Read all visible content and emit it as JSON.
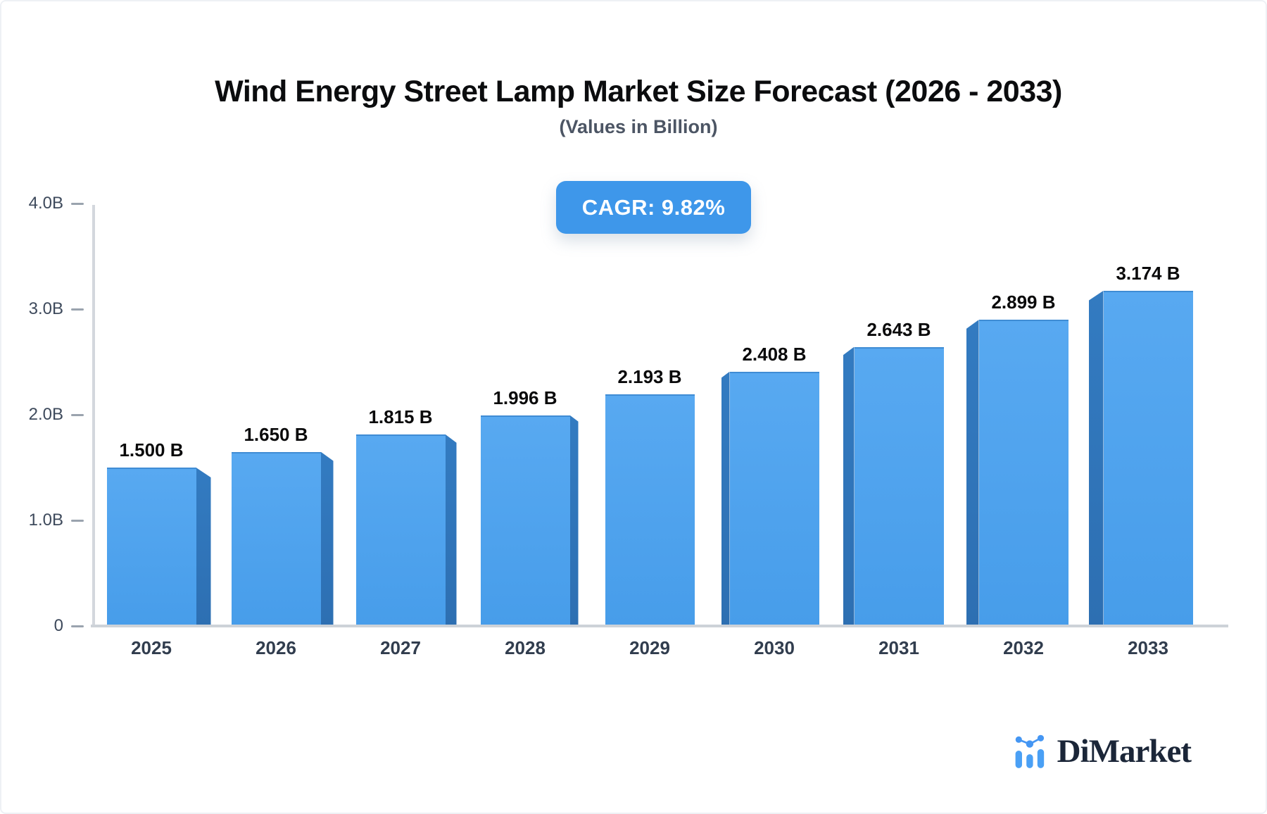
{
  "header": {
    "title": "Wind Energy Street Lamp Market Size Forecast (2026 - 2033)",
    "subtitle": "(Values in Billion)"
  },
  "badge": {
    "label": "CAGR: 9.82%",
    "bg_color": "#3e97ea",
    "text_color": "#ffffff"
  },
  "chart_data": {
    "type": "bar",
    "title": "Wind Energy Street Lamp Market Size Forecast (2026 - 2033)",
    "subtitle": "(Values in Billion)",
    "unit": "Billion",
    "categories": [
      "2025",
      "2026",
      "2027",
      "2028",
      "2029",
      "2030",
      "2031",
      "2032",
      "2033"
    ],
    "values": [
      1.5,
      1.65,
      1.815,
      1.996,
      2.193,
      2.408,
      2.643,
      2.899,
      3.174
    ],
    "value_labels": [
      "1.500 B",
      "1.650 B",
      "1.815 B",
      "1.996 B",
      "2.193 B",
      "2.408 B",
      "2.643 B",
      "2.899 B",
      "3.174 B"
    ],
    "ylim": [
      0,
      4.0
    ],
    "yticks": [
      {
        "label": "4.0B",
        "value": 4.0
      },
      {
        "label": "3.0B",
        "value": 3.0
      },
      {
        "label": "2.0B",
        "value": 2.0
      },
      {
        "label": "1.0B",
        "value": 1.0
      },
      {
        "label": "0",
        "value": 0.0
      }
    ],
    "grid": false,
    "legend": "none",
    "colors": {
      "bar_face_top": "#58a9f1",
      "bar_face_bottom": "#479dea",
      "bar_top_edge": "#3f8cd4",
      "bar_side_top": "#337bc1",
      "bar_side_bottom": "#2d6fb2",
      "axis": "#cdd2d8",
      "tick": "#9aa3ae",
      "ytick_text": "#3e4a5c",
      "xtick_text": "#313d4e",
      "value_text": "#0a0a0b"
    }
  },
  "footer": {
    "brand": "DiMarket",
    "logo_icon": "bar-chart-trend-icon",
    "logo_color": "#4aa0f5",
    "logo_dot_color": "#4596f3",
    "text_color": "#1b2638"
  }
}
